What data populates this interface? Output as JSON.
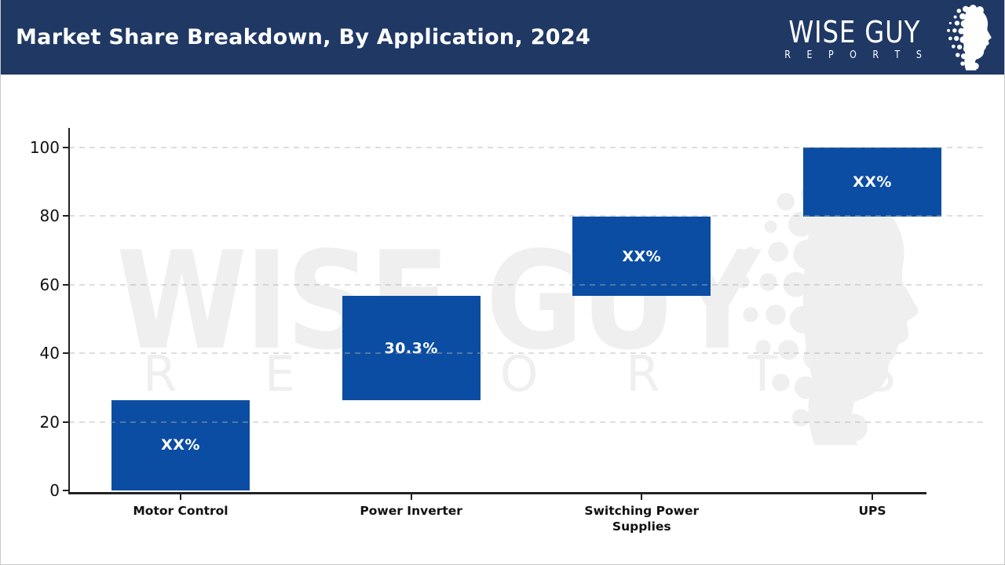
{
  "header": {
    "title": "Market Share Breakdown, By Application, 2024",
    "bg_color": "#1F3864",
    "logo": {
      "name": "WISE GUY",
      "tagline": "R E P O R T S"
    }
  },
  "watermark": {
    "name": "WISE GUY",
    "tagline": "R E P O R T S"
  },
  "chart_data": {
    "type": "bar",
    "subtype": "waterfall",
    "title": "Market Share Breakdown, By Application, 2024",
    "categories": [
      "Motor Control",
      "Power Inverter",
      "Switching Power Supplies",
      "UPS"
    ],
    "bars": [
      {
        "category": "Motor Control",
        "start": 0,
        "end": 26.3,
        "label": "XX%"
      },
      {
        "category": "Power Inverter",
        "start": 26.3,
        "end": 56.6,
        "label": "30.3%"
      },
      {
        "category": "Switching Power Supplies",
        "start": 56.6,
        "end": 79.8,
        "label": "XX%"
      },
      {
        "category": "UPS",
        "start": 79.8,
        "end": 100,
        "label": "XX%"
      }
    ],
    "yticks": [
      0,
      20,
      40,
      60,
      80,
      100
    ],
    "ylim": [
      0,
      105.5
    ],
    "xlabel": "",
    "ylabel": "",
    "grid": "dashed-horizontal-over-bars",
    "legend": "none",
    "bar_color": "#0B4DA2",
    "bar_label_color": "#FFFFFF",
    "axis_color": "#222222",
    "tick_label_color": "#111111",
    "watermark_color": "#EFEFEF"
  }
}
